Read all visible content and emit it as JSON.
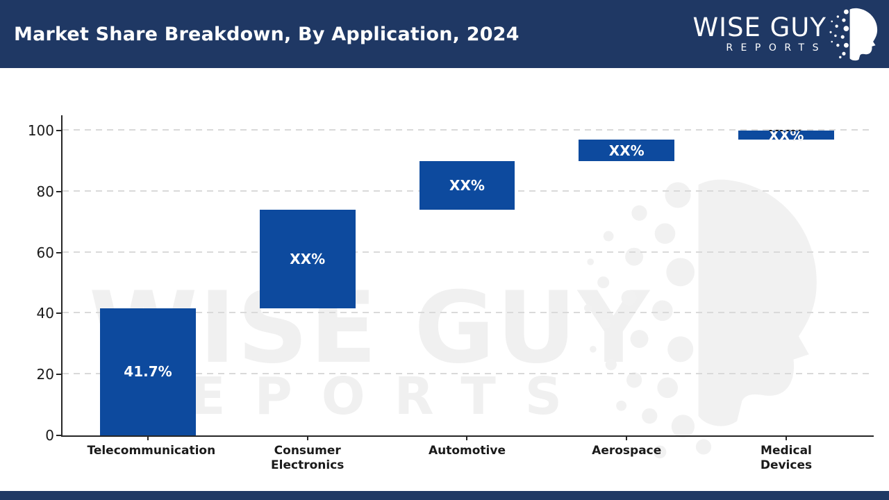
{
  "header": {
    "title": "Market Share Breakdown, By Application, 2024",
    "logo": {
      "line1": "WISE GUY",
      "line2": "REPORTS"
    }
  },
  "watermark": {
    "line1": "WISE GUY",
    "line2": "REPORTS"
  },
  "colors": {
    "header_bg": "#1f3864",
    "bar": "#0d4a9e",
    "axis": "#262626",
    "grid": "#d9d9d9",
    "label_text": "#1a1a1a",
    "bar_label": "#ffffff",
    "watermark": "#f0f0f0"
  },
  "chart_data": {
    "type": "bar",
    "subtype": "waterfall-floating-bars",
    "title": "Market Share Breakdown, By Application, 2024",
    "categories": [
      "Telecommunication",
      "Consumer Electronics",
      "Automotive",
      "Aerospace",
      "Medical Devices"
    ],
    "segments": [
      {
        "category": "Telecommunication",
        "start": 0,
        "end": 41.7,
        "label": "41.7%"
      },
      {
        "category": "Consumer Electronics",
        "start": 41.7,
        "end": 74,
        "label": "XX%"
      },
      {
        "category": "Automotive",
        "start": 74,
        "end": 90,
        "label": "XX%"
      },
      {
        "category": "Aerospace",
        "start": 90,
        "end": 97,
        "label": "XX%"
      },
      {
        "category": "Medical Devices",
        "start": 97,
        "end": 100,
        "label": "XX%",
        "label_style": "split"
      }
    ],
    "yticks": [
      0,
      20,
      40,
      60,
      80,
      100
    ],
    "ylim": [
      0,
      105
    ],
    "xlabel": "",
    "ylabel": "",
    "grid": "horizontal-dashed",
    "legend": false,
    "layout": {
      "first_center_pct": 10.53,
      "center_step_pct": 19.67,
      "bar_width_pct": 11.81
    }
  }
}
